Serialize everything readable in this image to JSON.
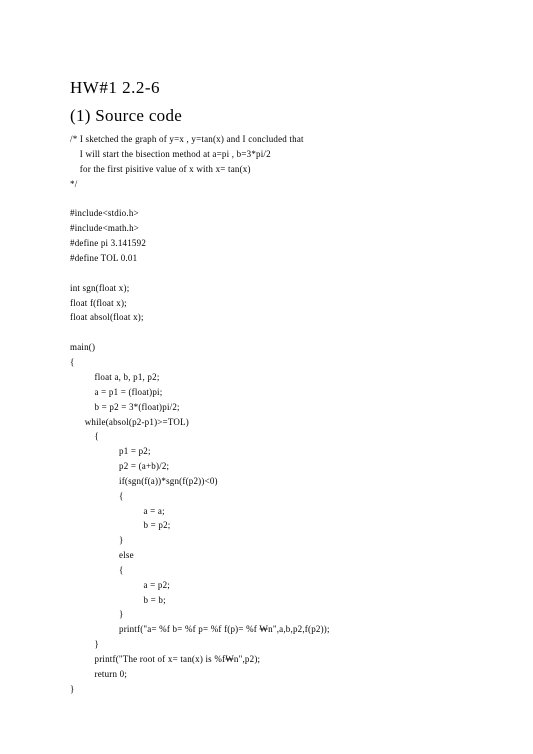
{
  "title": "HW#1 2.2-6",
  "section": "(1) Source code",
  "code": {
    "l1": "/* I sketched the graph of y=x , y=tan(x) and I concluded that",
    "l2": "    I will start the bisection method at a=pi , b=3*pi/2",
    "l3": "    for the first pisitive value of x with x= tan(x)",
    "l4": "*/",
    "l5": "#include<stdio.h>",
    "l6": "#include<math.h>",
    "l7": "#define pi 3.141592",
    "l8": "#define TOL 0.01",
    "l9": "int sgn(float x);",
    "l10": "float f(float x);",
    "l11": "float absol(float x);",
    "l12": "main()",
    "l13": "{",
    "l14": "          float a, b, p1, p2;",
    "l15": "          a = p1 = (float)pi;",
    "l16": "          b = p2 = 3*(float)pi/2;",
    "l17": "      while(absol(p2-p1)>=TOL)",
    "l18": "          {",
    "l19": "                    p1 = p2;",
    "l20": "                    p2 = (a+b)/2;",
    "l21": "                    if(sgn(f(a))*sgn(f(p2))<0)",
    "l22": "                    {",
    "l23": "                              a = a;",
    "l24": "                              b = p2;",
    "l25": "                    }",
    "l26": "                    else",
    "l27": "                    {",
    "l28": "                              a = p2;",
    "l29": "                              b = b;",
    "l30": "                    }",
    "l31": "                    printf(\"a= %f b= %f p= %f f(p)= %f ₩n\",a,b,p2,f(p2));",
    "l32": "          }",
    "l33": "          printf(\"The root of x= tan(x) is %f₩n\",p2);",
    "l34": "          return 0;",
    "l35": "}"
  }
}
